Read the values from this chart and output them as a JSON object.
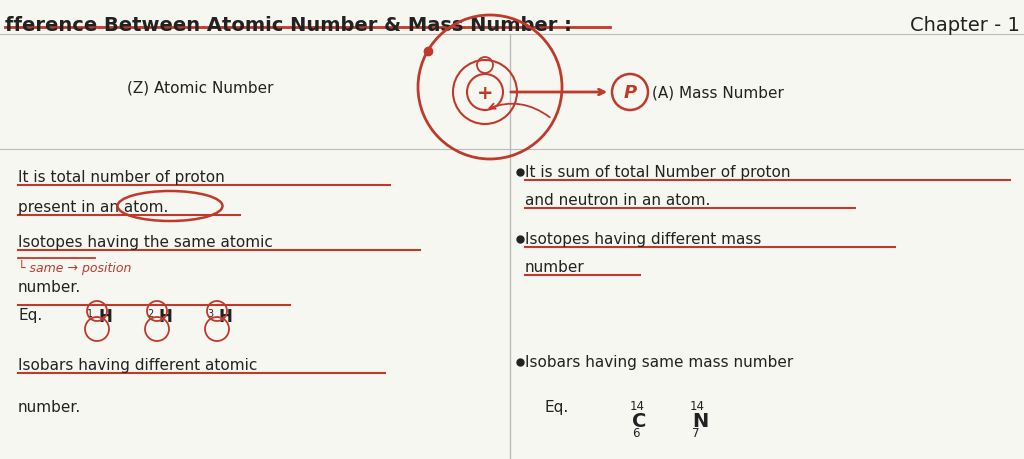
{
  "title_left": "fference Between Atomic Number & Mass Number :",
  "title_right": "Chapter - 1",
  "bg_color": "#f7f7f2",
  "text_color": "#222222",
  "red_color": "#c0392b",
  "font_size_title": 14,
  "font_size_body": 11,
  "font_size_small": 8.5,
  "left_label": "(Z) Atomic Number",
  "right_label": "(A) Mass Number",
  "left_bullet1_line1": "It is total number of proton",
  "left_bullet1_line2": "present in an atom.",
  "left_bullet2_line1": "Isotopes having the same atomic",
  "left_annotation": "└ same → position",
  "left_bullet2_line2": "number.",
  "left_eq_label": "Eq.",
  "left_bullet4_line1": "Isobars having different atomic",
  "left_bullet4_line2": "number.",
  "right_bullet1_line1": "It is sum of total Number of proton",
  "right_bullet1_line2": "and neutron in an atom.",
  "right_bullet2_line1": "Isotopes having different mass",
  "right_bullet2_line2": "number",
  "right_bullet3_line1": "Isobars having same mass number",
  "eq_label": "Eq."
}
